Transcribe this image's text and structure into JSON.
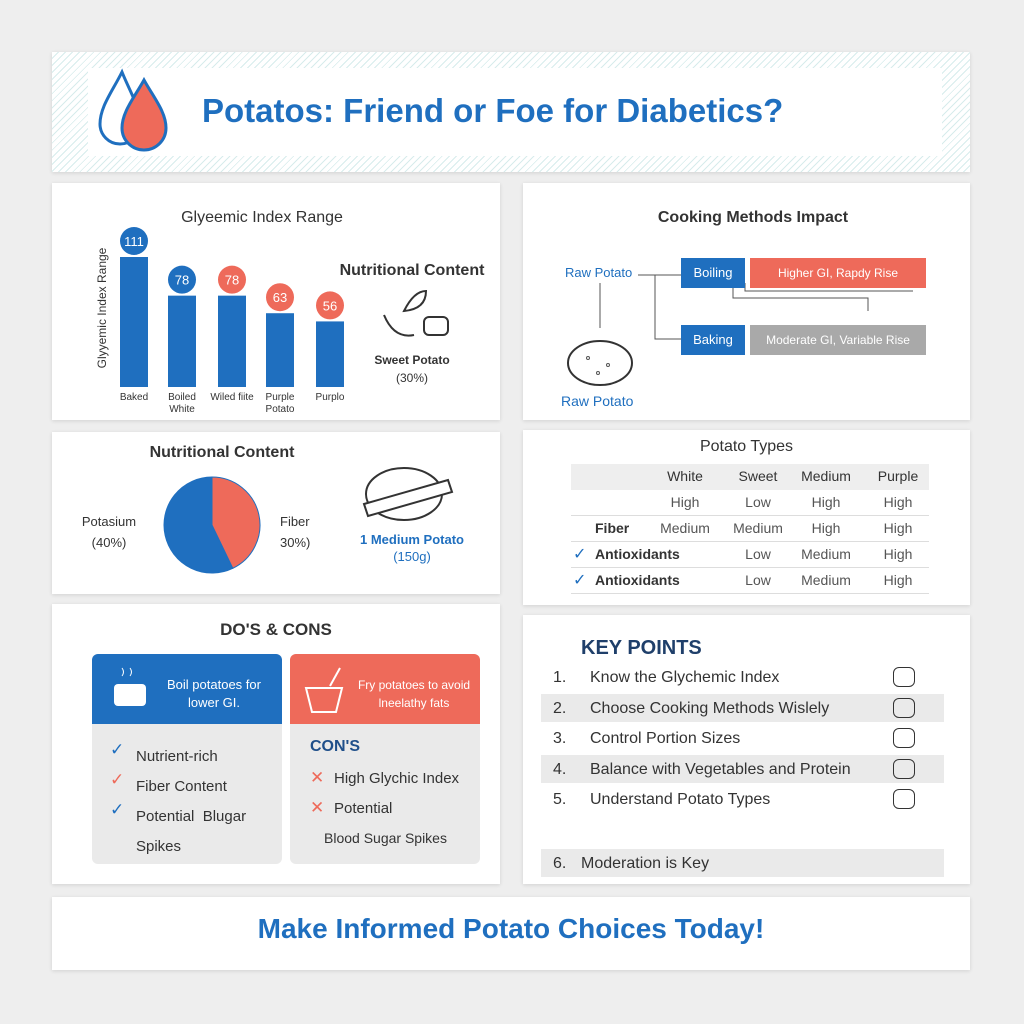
{
  "header": {
    "title": "Potatos: Friend or Foe for Diabetics?"
  },
  "gi_chart": {
    "type": "bar",
    "title": "Glyeemic Index Range",
    "y_label": "Glyyemic Index Range",
    "categories": [
      "Baked",
      "Boiled White",
      "Wiled fiite",
      "Purple Potato",
      "Purplo"
    ],
    "values": [
      111,
      78,
      78,
      63,
      56
    ],
    "color": "#1f6fbf",
    "label_colors": [
      "#1f6fbf",
      "#1f6fbf",
      "#ee6a5a",
      "#ee6a5a",
      "#ee6a5a"
    ],
    "side": {
      "title": "Nutritional Content",
      "label": "Sweet Potato",
      "value_label": "(30%)"
    }
  },
  "cooking": {
    "title": "Cooking Methods Impact",
    "source": "Raw Potato",
    "methods": [
      {
        "name": "Boiling",
        "effect": "Higher GI, Rapdy Rise",
        "color": "#ee6a5a"
      },
      {
        "name": "Baking",
        "effect": "Moderate GI, Variable Rise",
        "color": "#a9a9a9"
      }
    ],
    "image_label": "Raw Potato"
  },
  "nutrition": {
    "type": "pie",
    "title": "Nutritional Content",
    "slices": [
      {
        "label": "Potasium",
        "value": 40,
        "value_label": "(40%)",
        "color": "#1f6fbf"
      },
      {
        "label": "Fiber",
        "value": 30,
        "value_label": "30%)",
        "color": "#ee6a5a"
      }
    ],
    "serving": {
      "label": "1 Medium Potato",
      "weight": "(150g)"
    }
  },
  "types": {
    "title": "Potato Types",
    "columns": [
      "White",
      "Sweet",
      "Medium",
      "Purple"
    ],
    "rows": [
      {
        "cells": [
          "High",
          "Low",
          "High",
          "High"
        ]
      },
      {
        "label": "Fiber",
        "cells": [
          "Medium",
          "Medium",
          "High",
          "High"
        ]
      },
      {
        "label": "Antioxidants",
        "checked": true,
        "cells": [
          null,
          "Low",
          "Medium",
          "High"
        ]
      },
      {
        "label": "Antioxidants",
        "checked": true,
        "cells": [
          null,
          "Low",
          "Medium",
          "High"
        ]
      }
    ]
  },
  "dos_cons": {
    "title": "DO'S & CONS",
    "dos": {
      "header": "Boil potatoes for lower GI.",
      "items": [
        {
          "text": "Nutrient-rich",
          "color": "#1f6fbf"
        },
        {
          "text": "Fiber Content",
          "color": "#ee6a5a"
        },
        {
          "text": "Potential  Blugar Spikes",
          "color": "#1f6fbf"
        }
      ]
    },
    "cons": {
      "header": "Fry potatoes to avoid lneelathy fats",
      "subtitle": "CON'S",
      "items": [
        {
          "text": "High Glychic Index",
          "mark": true
        },
        {
          "text": "Potential",
          "mark": true
        },
        {
          "text": "Blood Sugar Spikes",
          "mark": false
        }
      ]
    }
  },
  "key_points": {
    "title": "KEY POINTS",
    "items": [
      {
        "number": "1.",
        "text": "Know the Glychemic Index"
      },
      {
        "number": "2.",
        "text": "Choose Cooking Methods Wislely"
      },
      {
        "number": "3.",
        "text": "Control Portion Sizes"
      },
      {
        "number": "4.",
        "text": "Balance with Vegetables and Protein"
      },
      {
        "number": "5.",
        "text": "Understand Potato Types"
      },
      {
        "number": "6.",
        "text": "Moderation is Key"
      }
    ]
  },
  "footer": {
    "text": "Make Informed Potato Choices Today!"
  }
}
